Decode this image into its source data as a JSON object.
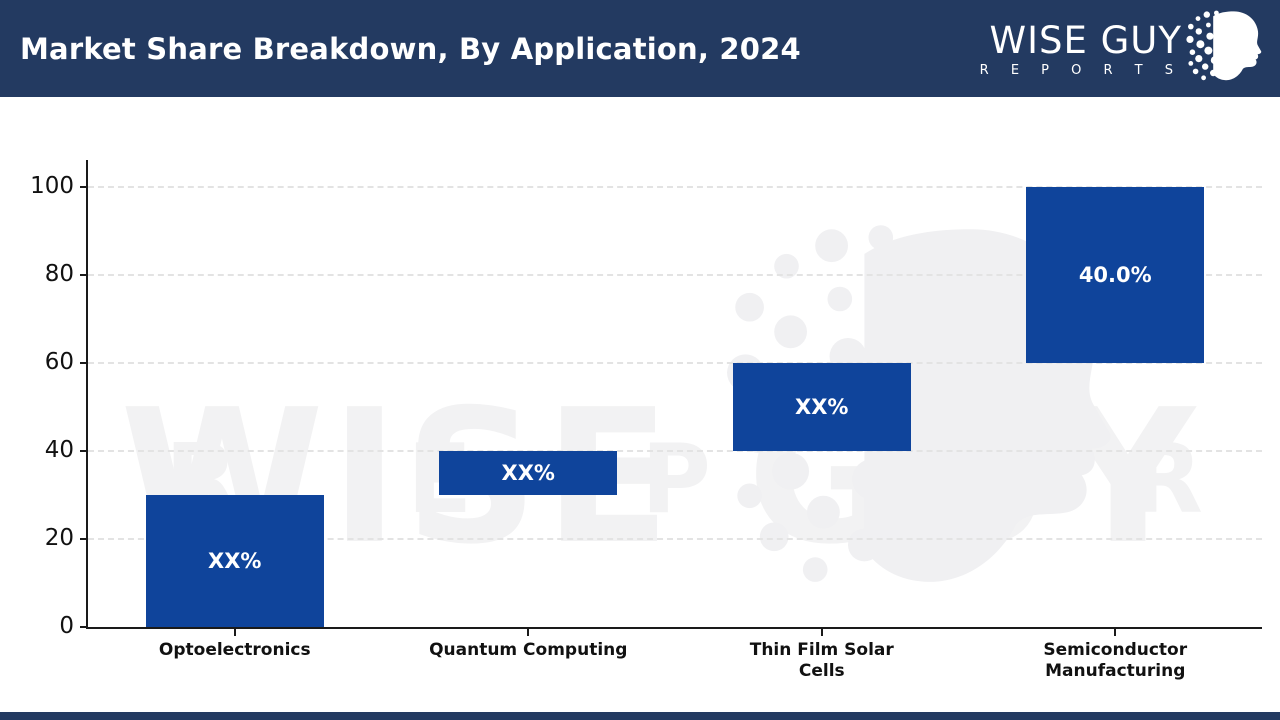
{
  "header": {
    "title": "Market Share Breakdown, By Application, 2024",
    "bg_color": "#233a61",
    "logo": {
      "line1": "WISE GUY",
      "line2": "R E P O R T S"
    }
  },
  "watermark": {
    "line1": "WISE GUY",
    "line2": "R E P O R T S"
  },
  "chart_data": {
    "type": "bar",
    "subtype": "waterfall",
    "title": "Market Share Breakdown, By Application, 2024",
    "categories": [
      "Optoelectronics",
      "Quantum Computing",
      "Thin Film Solar Cells",
      "Semiconductor Manufacturing"
    ],
    "category_lines": [
      [
        "Optoelectronics"
      ],
      [
        "Quantum Computing"
      ],
      [
        "Thin Film Solar",
        "Cells"
      ],
      [
        "Semiconductor",
        "Manufacturing"
      ]
    ],
    "segments": [
      {
        "start": 0,
        "end": 30,
        "value": 30,
        "label": "XX%"
      },
      {
        "start": 30,
        "end": 40,
        "value": 10,
        "label": "XX%"
      },
      {
        "start": 40,
        "end": 60,
        "value": 20,
        "label": "XX%"
      },
      {
        "start": 60,
        "end": 100,
        "value": 40,
        "label": "40.0%"
      }
    ],
    "yticks": [
      0,
      20,
      40,
      60,
      80,
      100
    ],
    "ylim": [
      0,
      106
    ],
    "xlabel": "",
    "ylabel": "",
    "grid": "horizontal-dashed",
    "legend": "none",
    "bar_color": "#0f449b",
    "bar_label_color": "#ffffff",
    "axis_color": "#1a1a1a",
    "grid_color": "#e3e3e3"
  },
  "footer": {
    "bg_color": "#233a61"
  }
}
